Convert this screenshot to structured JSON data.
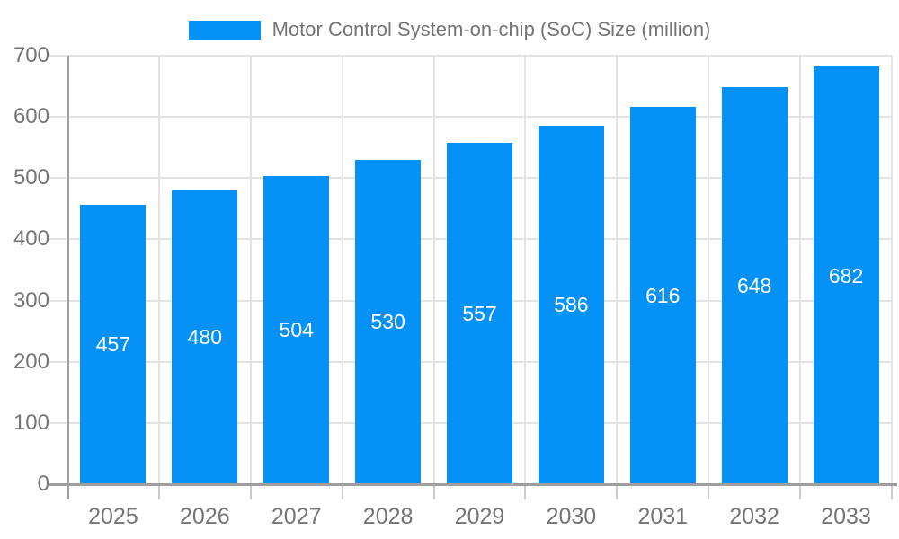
{
  "colors": {
    "bar": "#0591F5",
    "grid": "#e3e3e3",
    "axis": "#9e9e9e",
    "tick": "#cccccc",
    "text": "#757575",
    "bar_label": "#ffffff",
    "background": "#ffffff"
  },
  "chart_data": {
    "type": "bar",
    "title": "Motor Control System-on-chip (SoC) Size (million)",
    "legend_position": "top",
    "categories": [
      "2025",
      "2026",
      "2027",
      "2028",
      "2029",
      "2030",
      "2031",
      "2032",
      "2033"
    ],
    "series": [
      {
        "name": "Motor Control System-on-chip (SoC) Size (million)",
        "values": [
          457,
          480,
          504,
          530,
          557,
          586,
          616,
          648,
          682
        ]
      }
    ],
    "xlabel": "",
    "ylabel": "",
    "ylim": [
      0,
      700
    ],
    "yticks": [
      0,
      100,
      200,
      300,
      400,
      500,
      600,
      700
    ],
    "grid": true,
    "bar_value_labels_visible": true
  }
}
